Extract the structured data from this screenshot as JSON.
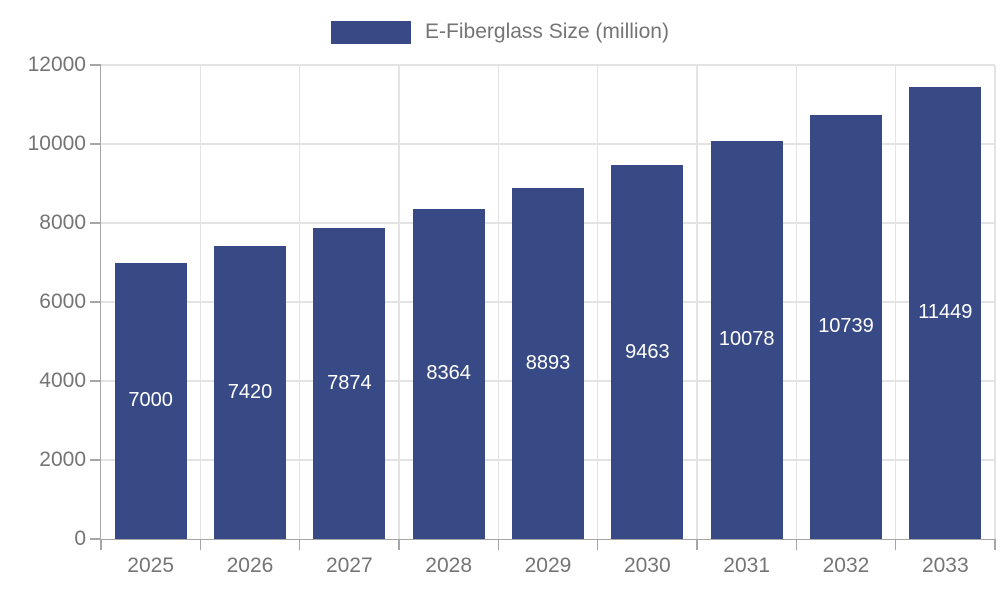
{
  "legend": {
    "label": "E-Fiberglass Size (million)"
  },
  "chart_data": {
    "type": "bar",
    "title": "E-Fiberglass Size (million)",
    "categories": [
      "2025",
      "2026",
      "2027",
      "2028",
      "2029",
      "2030",
      "2031",
      "2032",
      "2033"
    ],
    "values": [
      7000,
      7420,
      7874,
      8364,
      8893,
      9463,
      10078,
      10739,
      11449
    ],
    "value_labels": [
      "7000",
      "7420",
      "7874",
      "8364",
      "8893",
      "9463",
      "10078",
      "10739",
      "11449"
    ],
    "xlabel": "",
    "ylabel": "",
    "ylim": [
      0,
      12000
    ],
    "yticks": [
      0,
      2000,
      4000,
      6000,
      8000,
      10000,
      12000
    ],
    "ytick_labels": [
      "0",
      "2000",
      "4000",
      "6000",
      "8000",
      "10000",
      "12000"
    ],
    "grid": true,
    "legend_position": "top",
    "bar_label_position": "inside-center",
    "colors": {
      "bar": "#384a85",
      "value_label": "#ffffff",
      "axis_text": "#757575",
      "axis_line": "#a6a6a6",
      "gridline": "#e3e3e3",
      "background": "#ffffff"
    }
  }
}
